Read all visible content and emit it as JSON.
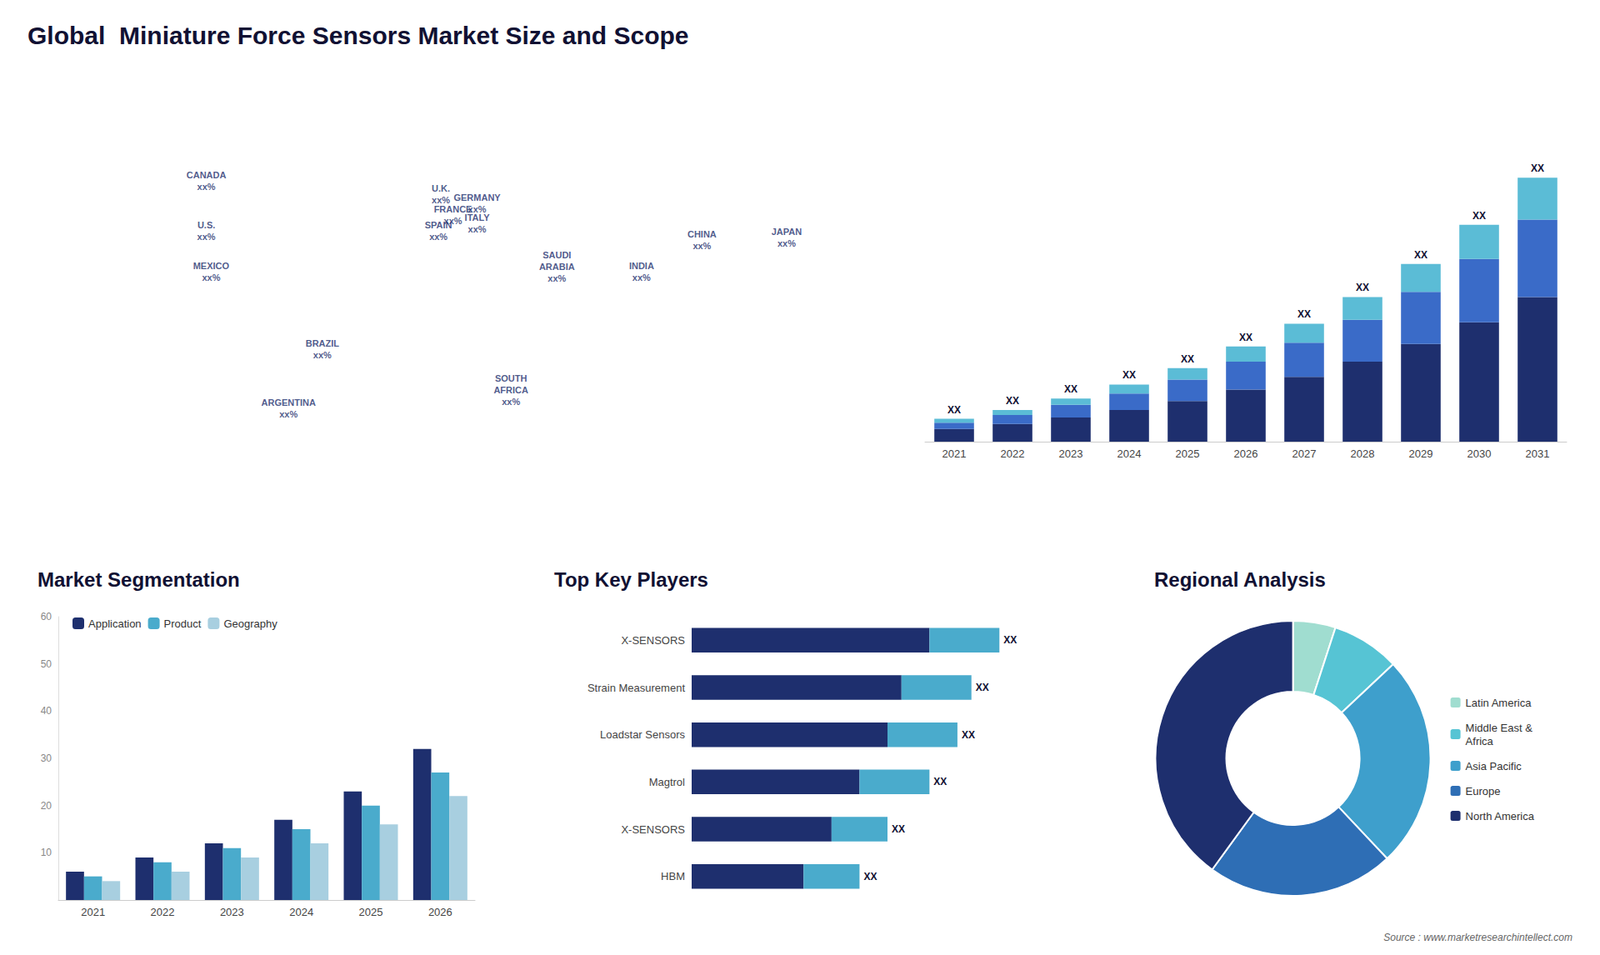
{
  "title": "Global  Miniature Force Sensors Market Size and Scope",
  "annotations": [
    "Source : www.marketresearchintellect.com"
  ],
  "chart_data": [
    {
      "type": "map",
      "xlim": [
        -175,
        180
      ],
      "ylim": [
        -60,
        90
      ],
      "tick_labels": false,
      "grid": false,
      "annotations": [
        {
          "text": "CANADA\nxx%",
          "x": -100,
          "y": 62
        },
        {
          "text": "U.S.\nxx%",
          "x": -100,
          "y": 40
        },
        {
          "text": "MEXICO\nxx%",
          "x": -98,
          "y": 22
        },
        {
          "text": "BRAZIL\nxx%",
          "x": -52,
          "y": -12
        },
        {
          "text": "ARGENTINA\nxx%",
          "x": -66,
          "y": -38
        },
        {
          "text": "U.K.\nxx%",
          "x": -3,
          "y": 56
        },
        {
          "text": "FRANCE\nxx%",
          "x": 2,
          "y": 47
        },
        {
          "text": "SPAIN\nxx%",
          "x": -4,
          "y": 40
        },
        {
          "text": "GERMANY\nxx%",
          "x": 12,
          "y": 52
        },
        {
          "text": "ITALY\nxx%",
          "x": 12,
          "y": 43
        },
        {
          "text": "SAUDI\nARABIA\nxx%",
          "x": 45,
          "y": 24
        },
        {
          "text": "INDIA\nxx%",
          "x": 80,
          "y": 22
        },
        {
          "text": "CHINA\nxx%",
          "x": 105,
          "y": 36
        },
        {
          "text": "JAPAN\nxx%",
          "x": 140,
          "y": 37
        },
        {
          "text": "SOUTH\nAFRICA\nxx%",
          "x": 26,
          "y": -30
        }
      ]
    },
    {
      "type": "bar",
      "stacked": true,
      "categories": [
        "2021",
        "2022",
        "2023",
        "2024",
        "2025",
        "2026",
        "2027",
        "2028",
        "2029",
        "2030",
        "2031"
      ],
      "series": [
        {
          "color": "#1e2f6e",
          "values": [
            1.0,
            1.4,
            1.9,
            2.5,
            3.2,
            4.1,
            5.1,
            6.3,
            7.7,
            9.4,
            11.4
          ]
        },
        {
          "color": "#3a6bc8",
          "values": [
            0.5,
            0.7,
            1.0,
            1.3,
            1.7,
            2.2,
            2.7,
            3.3,
            4.1,
            5.0,
            6.1
          ]
        },
        {
          "color": "#5bbcd6",
          "values": [
            0.3,
            0.4,
            0.5,
            0.7,
            0.9,
            1.2,
            1.5,
            1.8,
            2.2,
            2.7,
            3.3
          ]
        }
      ],
      "annotations": [
        "XX",
        "XX",
        "XX",
        "XX",
        "XX",
        "XX",
        "XX",
        "XX",
        "XX",
        "XX",
        "XX"
      ],
      "ylim": [
        0,
        24.3
      ],
      "tick_labels": "x",
      "grid": false
    },
    {
      "type": "bar",
      "title": "Market Segmentation",
      "categories": [
        "2021",
        "2022",
        "2023",
        "2024",
        "2025",
        "2026"
      ],
      "series": [
        {
          "name": "Application",
          "color": "#1e2f6e",
          "values": [
            6,
            9,
            12,
            17,
            23,
            32
          ]
        },
        {
          "name": "Product",
          "color": "#4aabcc",
          "values": [
            5,
            8,
            11,
            15,
            20,
            27
          ]
        },
        {
          "name": "Geography",
          "color": "#a8cfe0",
          "values": [
            4,
            6,
            9,
            12,
            16,
            22
          ]
        }
      ],
      "ylim": [
        0,
        60
      ],
      "yticks": [
        10,
        20,
        30,
        40,
        50,
        60
      ],
      "legend": "upper left",
      "grid": false
    },
    {
      "type": "bar",
      "title": "Top Key Players",
      "orientation": "horizontal",
      "stacked": true,
      "categories": [
        "X-SENSORS",
        "Strain Measurement",
        "Loadstar Sensors",
        "Magtrol",
        "X-SENSORS",
        "HBM"
      ],
      "series": [
        {
          "color": "#1e2f6e",
          "values": [
            8.5,
            7.5,
            7.0,
            6.0,
            5.0,
            4.0
          ]
        },
        {
          "color": "#4aabcc",
          "values": [
            2.5,
            2.5,
            2.5,
            2.5,
            2.0,
            2.0
          ]
        }
      ],
      "annotations": [
        "XX",
        "XX",
        "XX",
        "XX",
        "XX",
        "XX"
      ],
      "xlim": [
        0,
        14
      ],
      "tick_labels": "y",
      "grid": false
    },
    {
      "type": "pie",
      "title": "Regional Analysis",
      "categories": [
        "Latin America",
        "Middle East &\nAfrica",
        "Asia Pacific",
        "Europe",
        "North America"
      ],
      "values": [
        5,
        8,
        25,
        22,
        40
      ],
      "colors": [
        "#a0ddd0",
        "#56c4d4",
        "#3e9fcc",
        "#2e6eb5",
        "#1e2f6e"
      ],
      "legend": "right"
    }
  ]
}
